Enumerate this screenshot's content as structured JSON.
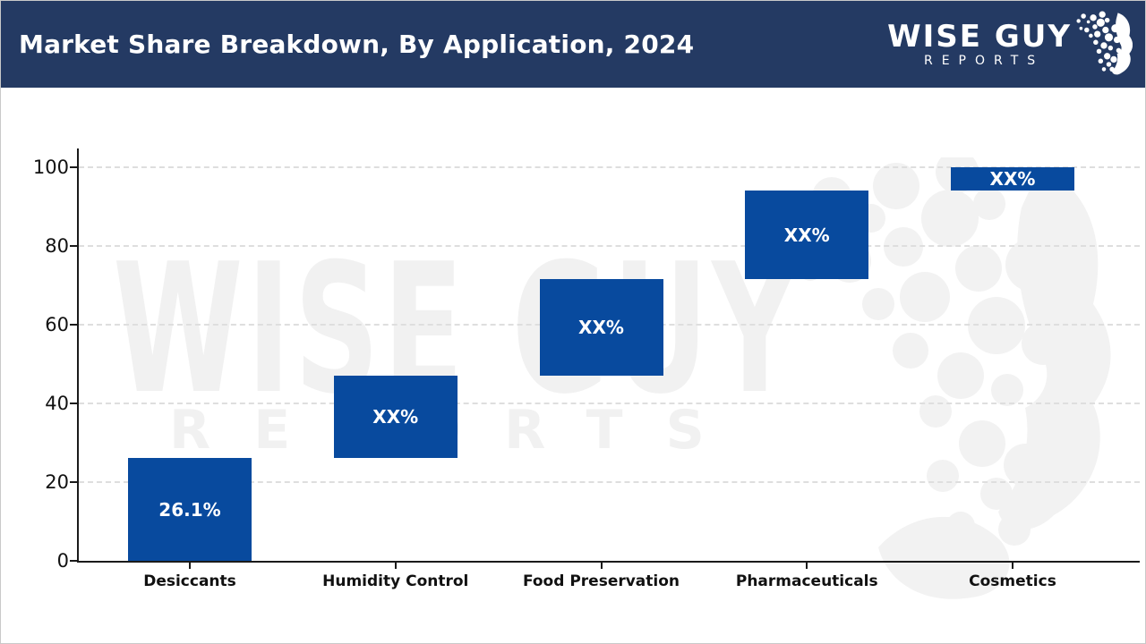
{
  "header": {
    "title": "Market Share Breakdown, By Application, 2024",
    "logo": {
      "line1": "WISE GUY",
      "line2": "REPORTS"
    }
  },
  "watermark": {
    "line1": "WISE GUY",
    "line2": "REPORTS"
  },
  "colors": {
    "header_bg": "#243A63",
    "bar": "#084A9E",
    "bar_label": "#FFFFFF",
    "axis": "#1A1A1A",
    "grid": "#DEDEDE",
    "watermark": "#F1F1F1"
  },
  "chart_data": {
    "type": "bar",
    "subtype": "waterfall",
    "title": "Market Share Breakdown, By Application, 2024",
    "xlabel": "",
    "ylabel": "",
    "categories": [
      "Desiccants",
      "Humidity Control",
      "Food Preservation",
      "Pharmaceuticals",
      "Cosmetics"
    ],
    "segments": [
      {
        "category": "Desiccants",
        "start": 0,
        "end": 26.1,
        "label": "26.1%"
      },
      {
        "category": "Humidity Control",
        "start": 26.1,
        "end": 47.0,
        "label": "XX%"
      },
      {
        "category": "Food Preservation",
        "start": 47.0,
        "end": 71.5,
        "label": "XX%"
      },
      {
        "category": "Pharmaceuticals",
        "start": 71.5,
        "end": 94.0,
        "label": "XX%"
      },
      {
        "category": "Cosmetics",
        "start": 94.0,
        "end": 100.0,
        "label": "XX%"
      }
    ],
    "y_ticks": [
      0,
      20,
      40,
      60,
      80,
      100
    ],
    "ylim": [
      0,
      105
    ],
    "grid": "horizontal-dashed",
    "legend": "none"
  }
}
